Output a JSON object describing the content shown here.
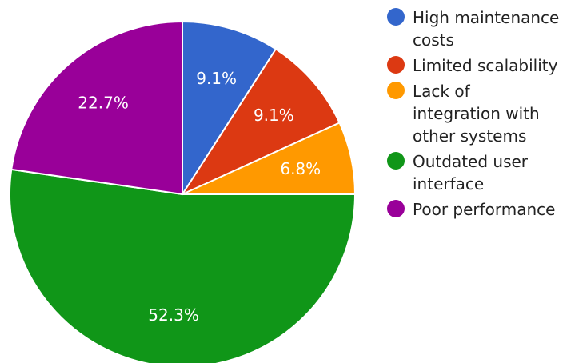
{
  "chart_data": {
    "type": "pie",
    "categories": [
      "High maintenance costs",
      "Limited scalability",
      "Lack of integration with other systems",
      "Outdated user interface",
      "Poor performance"
    ],
    "values": [
      9.1,
      9.1,
      6.8,
      52.3,
      22.7
    ],
    "labels": [
      "9.1%",
      "9.1%",
      "6.8%",
      "52.3%",
      "22.7%"
    ],
    "colors": [
      "#3366cc",
      "#dc3912",
      "#ff9900",
      "#109618",
      "#990099"
    ],
    "legend_position": "right"
  }
}
